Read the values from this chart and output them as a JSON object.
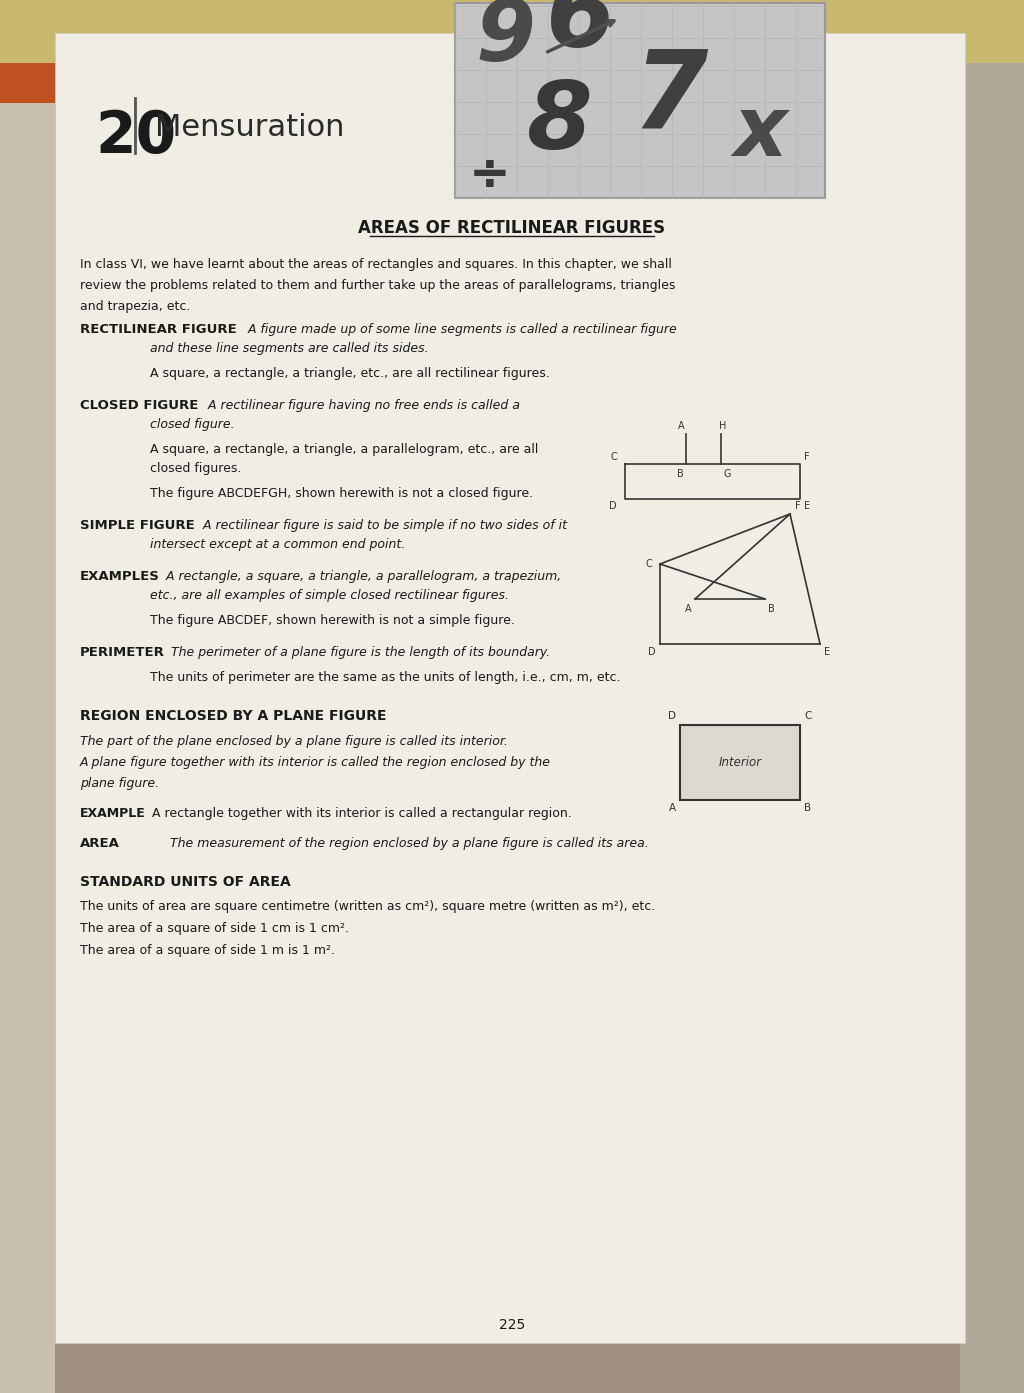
{
  "page_number": "20",
  "chapter_title": "Mensuration",
  "section_title": "AREAS OF RECTILINEAR FIGURES",
  "page_bg": "#f0ede4",
  "text_color": "#1a1a1a",
  "page_num": "225",
  "intro_text": "In class VI, we have learnt about the areas of rectangles and squares. In this chapter, we shall\nreview the problems related to them and further take up the areas of parallelograms, triangles\nand trapezia, etc.",
  "std_lines": [
    "The units of area are square centimetre (written as cm²), square metre (written as m²), etc.",
    "The area of a square of side 1 cm is 1 cm².",
    "The area of a square of side 1 m is 1 m²."
  ]
}
